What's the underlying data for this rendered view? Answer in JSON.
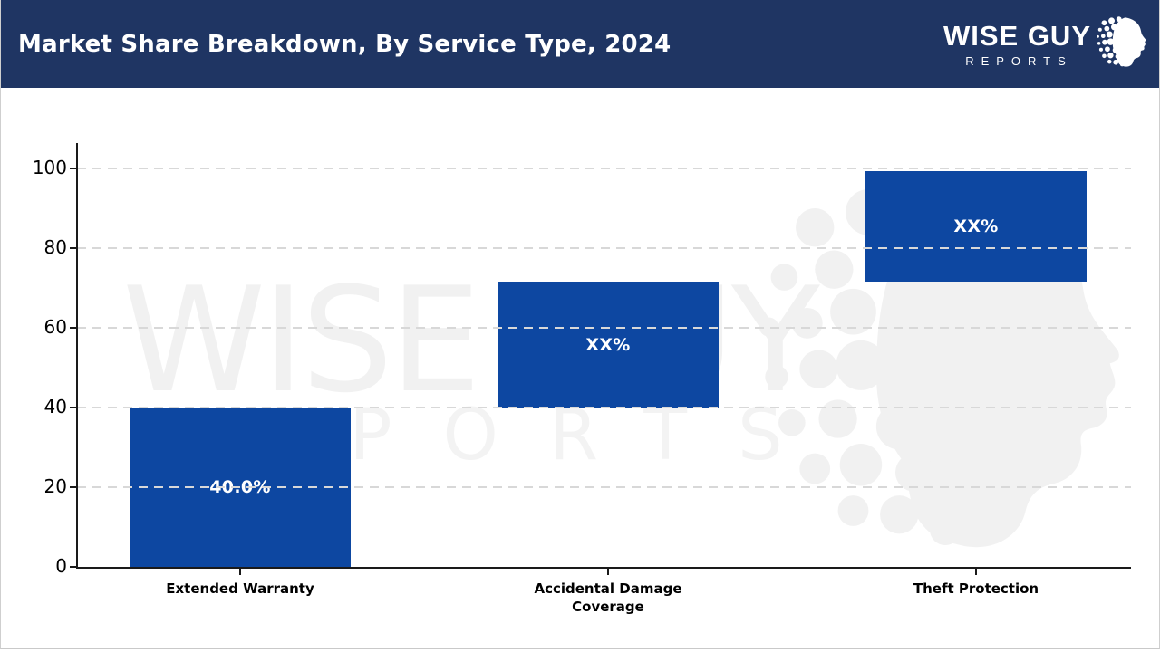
{
  "header": {
    "title": "Market Share Breakdown, By Service Type, 2024",
    "logo": {
      "brand": "WISE GUY",
      "sub": "REPORTS"
    }
  },
  "watermark": {
    "brand": "WISE GUY",
    "sub": "REPORTS"
  },
  "chart_data": {
    "type": "bar",
    "variant": "floating-segment-waterfall",
    "title": "Market Share Breakdown, By Service Type, 2024",
    "categories": [
      "Extended Warranty",
      "Accidental Damage\nCoverage",
      "Theft Protection"
    ],
    "bars": [
      {
        "category": "Extended Warranty",
        "start": 0,
        "end": 40,
        "label": "40.0%"
      },
      {
        "category": "Accidental Damage\nCoverage",
        "start": 40,
        "end": 71.5,
        "label": "XX%"
      },
      {
        "category": "Theft Protection",
        "start": 71.5,
        "end": 99.3,
        "label": "XX%"
      }
    ],
    "xlabel": "",
    "ylabel": "",
    "yticks": [
      0,
      20,
      40,
      60,
      80,
      100
    ],
    "ylim": [
      0,
      106
    ],
    "grid": "horizontal-dashed",
    "legend_position": "none",
    "bar_color": "#0d47a1",
    "bar_label_color": "#ffffff"
  },
  "colors": {
    "header_bg": "#1f3563",
    "bar": "#0d47a1",
    "grid": "#d8d8d8",
    "axis": "#1a1a1a",
    "watermark": "#f1f1f1"
  }
}
